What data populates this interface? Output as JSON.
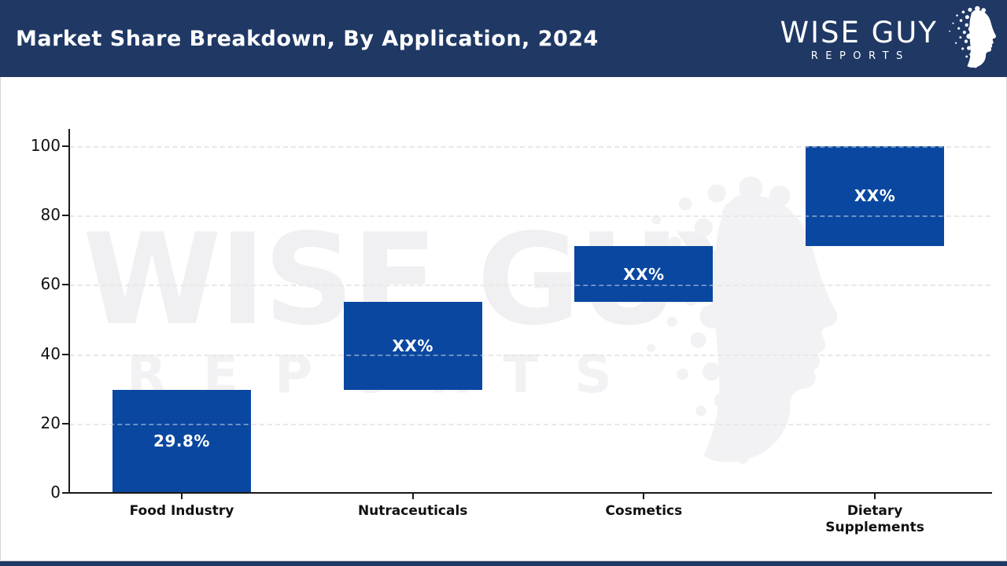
{
  "header": {
    "title": "Market Share Breakdown, By Application, 2024",
    "logo": {
      "line1": "WISE GUY",
      "line2": "REPORTS"
    }
  },
  "watermark": {
    "line1": "WISE GUY",
    "line2": "REPORTS"
  },
  "colors": {
    "header_bg": "#1f3864",
    "footer_bg": "#1f3864",
    "bar": "#0a47a0",
    "bar_label": "#ffffff",
    "title_text": "#ffffff",
    "axis": "#1a1a1a",
    "gridline": "#d9d9d9",
    "watermark": "#f0f0f2"
  },
  "chart_data": {
    "type": "bar",
    "subtype": "waterfall-floating-bars",
    "title": "Market Share Breakdown, By Application, 2024",
    "categories": [
      "Food Industry",
      "Nutraceuticals",
      "Cosmetics",
      "Dietary Supplements"
    ],
    "bars": [
      {
        "category": "Food Industry",
        "start": 0,
        "end": 29.8,
        "segment_value": 29.8,
        "label": "29.8%"
      },
      {
        "category": "Nutraceuticals",
        "start": 29.8,
        "end": 55,
        "segment_value": 25.2,
        "label": "XX%"
      },
      {
        "category": "Cosmetics",
        "start": 55,
        "end": 71.3,
        "segment_value": 16.3,
        "label": "XX%"
      },
      {
        "category": "Dietary Supplements",
        "start": 71.3,
        "end": 100,
        "segment_value": 28.7,
        "label": "XX%"
      }
    ],
    "yticks": [
      0,
      20,
      40,
      60,
      80,
      100
    ],
    "ylim": [
      0,
      105
    ],
    "xlabel": "",
    "ylabel": "",
    "grid": "horizontal-dashed",
    "legend": "none"
  }
}
